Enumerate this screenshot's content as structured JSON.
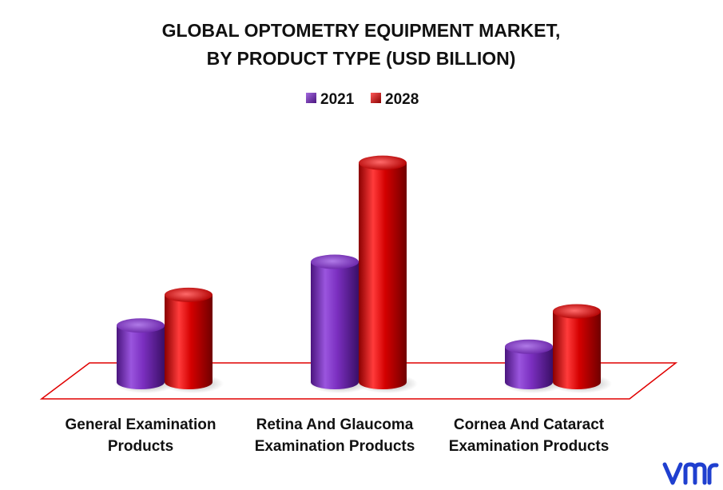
{
  "chart_data": {
    "type": "bar",
    "title_lines": [
      "GLOBAL OPTOMETRY EQUIPMENT MARKET,",
      "BY PRODUCT TYPE (USD BILLION)"
    ],
    "categories": [
      [
        "General Examination",
        "Products"
      ],
      [
        "Retina And Glaucoma",
        "Examination Products"
      ],
      [
        "Cornea And Cataract",
        "Examination Products"
      ]
    ],
    "series": [
      {
        "name": "2021",
        "values": [
          2.4,
          5.1,
          1.5
        ],
        "color": "#7b2fc0"
      },
      {
        "name": "2028",
        "values": [
          3.7,
          9.3,
          3.0
        ],
        "color": "#d40000"
      }
    ],
    "ylim": [
      0,
      10
    ],
    "grid": false,
    "legend_position": "top-center",
    "floor_outline_color": "#e00000"
  },
  "logo": {
    "text": "vmr",
    "color": "#1f3fcf"
  }
}
